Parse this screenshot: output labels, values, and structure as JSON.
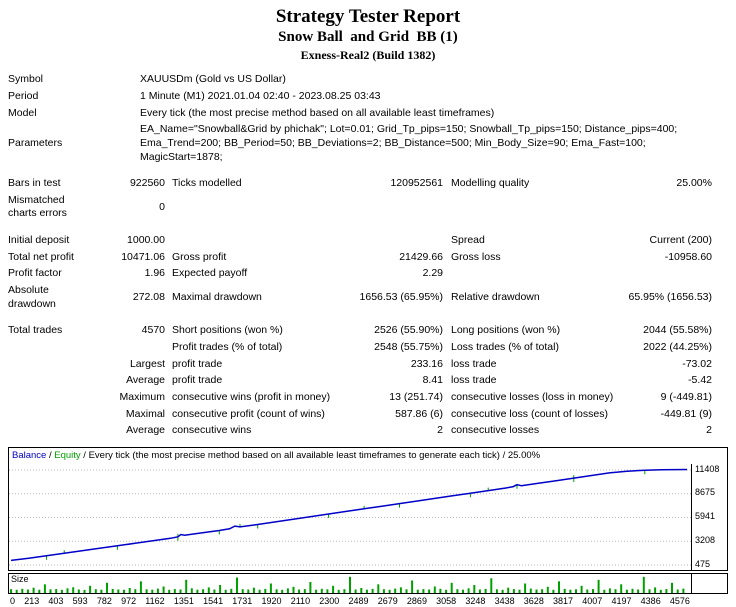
{
  "report": {
    "title": "Strategy Tester Report",
    "subtitle": "Snow Ball  and Grid  BB (1)",
    "server": "Exness-Real2 (Build 1382)"
  },
  "settings": {
    "rows": [
      {
        "label": "Symbol",
        "value": "XAUUSDm (Gold vs US Dollar)"
      },
      {
        "label": "Period",
        "value": "1 Minute (M1) 2021.01.04 02:40 - 2023.08.25 03:43"
      },
      {
        "label": "Model",
        "value": "Every tick (the most precise method based on all available least timeframes)"
      },
      {
        "label": "Parameters",
        "value": "EA_Name=\"Snowball&Grid by phichak\"; Lot=0.01; Grid_Tp_pips=150; Snowball_Tp_pips=150; Distance_pips=400; Ema_Trend=200; BB_Period=50; BB_Deviations=2; BB_Distance=500; Min_Body_Size=90; Ema_Fast=100; MagicStart=1878;"
      }
    ]
  },
  "stats": {
    "rows": [
      {
        "c1": "Bars in test",
        "c2": "922560",
        "c3": "Ticks modelled",
        "c4": "120952561",
        "c5": "Modelling quality",
        "c6": "25.00%"
      },
      {
        "c1": "Mismatched charts errors",
        "c2": "0",
        "c3": "",
        "c4": "",
        "c5": "",
        "c6": ""
      },
      {
        "c1": "Initial deposit",
        "c2": "1000.00",
        "c3": "",
        "c4": "",
        "c5": "Spread",
        "c6": "Current (200)"
      },
      {
        "c1": "Total net profit",
        "c2": "10471.06",
        "c3": "Gross profit",
        "c4": "21429.66",
        "c5": "Gross loss",
        "c6": "-10958.60"
      },
      {
        "c1": "Profit factor",
        "c2": "1.96",
        "c3": "Expected payoff",
        "c4": "2.29",
        "c5": "",
        "c6": ""
      },
      {
        "c1": "Absolute drawdown",
        "c2": "272.08",
        "c3": "Maximal drawdown",
        "c4": "1656.53 (65.95%)",
        "c5": "Relative drawdown",
        "c6": "65.95% (1656.53)"
      },
      {
        "c1": "Total trades",
        "c2": "4570",
        "c3": "Short positions (won %)",
        "c4": "2526 (55.90%)",
        "c5": "Long positions (won %)",
        "c6": "2044 (55.58%)"
      },
      {
        "c1": "",
        "c2": "",
        "c3": "Profit trades (% of total)",
        "c4": "2548 (55.75%)",
        "c5": "Loss trades (% of total)",
        "c6": "2022 (44.25%)"
      },
      {
        "c1": "",
        "c2": "Largest",
        "c3": "profit trade",
        "c4": "233.16",
        "c5": "loss trade",
        "c6": "-73.02"
      },
      {
        "c1": "",
        "c2": "Average",
        "c3": "profit trade",
        "c4": "8.41",
        "c5": "loss trade",
        "c6": "-5.42"
      },
      {
        "c1": "",
        "c2": "Maximum",
        "c3": "consecutive wins (profit in money)",
        "c4": "13 (251.74)",
        "c5": "consecutive losses (loss in money)",
        "c6": "9 (-449.81)"
      },
      {
        "c1": "",
        "c2": "Maximal",
        "c3": "consecutive profit (count of wins)",
        "c4": "587.86 (6)",
        "c5": "consecutive loss (count of losses)",
        "c6": "-449.81 (9)"
      },
      {
        "c1": "",
        "c2": "Average",
        "c3": "consecutive wins",
        "c4": "2",
        "c5": "consecutive losses",
        "c6": "2"
      }
    ]
  },
  "chart_data": {
    "type": "line",
    "title": "Balance / Equity curve",
    "legend_balance": "Balance",
    "legend_equity": "Equity",
    "separator": " / ",
    "caption_model": "Every tick (the most precise method based on all available least timeframes to generate each tick)",
    "caption_quality": "25.00%",
    "balance_color": "#0000c8",
    "equity_color": "#00a000",
    "size_bar_color": "#00a000",
    "grid": "horizontal-dotted",
    "legend_position": "top-left",
    "x_range": [
      0,
      4576
    ],
    "y_range": [
      475,
      11408
    ],
    "y_ticks": [
      475,
      3208,
      5941,
      8675,
      11408
    ],
    "x_ticks": [
      0,
      213,
      403,
      593,
      782,
      972,
      1162,
      1351,
      1541,
      1731,
      1920,
      2110,
      2300,
      2489,
      2679,
      2869,
      3058,
      3248,
      3438,
      3628,
      3817,
      4007,
      4197,
      4386,
      4576
    ],
    "size_label": "Size",
    "balance_points": [
      [
        0,
        1000
      ],
      [
        120,
        1260
      ],
      [
        240,
        1545
      ],
      [
        360,
        1830
      ],
      [
        480,
        2120
      ],
      [
        600,
        2400
      ],
      [
        720,
        2690
      ],
      [
        840,
        2975
      ],
      [
        960,
        3260
      ],
      [
        1080,
        3545
      ],
      [
        1130,
        3720
      ],
      [
        1150,
        3990
      ],
      [
        1175,
        3900
      ],
      [
        1290,
        4170
      ],
      [
        1410,
        4450
      ],
      [
        1480,
        4640
      ],
      [
        1515,
        4950
      ],
      [
        1550,
        4860
      ],
      [
        1670,
        5140
      ],
      [
        1790,
        5440
      ],
      [
        1910,
        5740
      ],
      [
        2030,
        6040
      ],
      [
        2150,
        6340
      ],
      [
        2270,
        6640
      ],
      [
        2390,
        6940
      ],
      [
        2510,
        7240
      ],
      [
        2630,
        7540
      ],
      [
        2750,
        7840
      ],
      [
        2870,
        8140
      ],
      [
        2990,
        8440
      ],
      [
        3110,
        8740
      ],
      [
        3230,
        9040
      ],
      [
        3350,
        9340
      ],
      [
        3400,
        9500
      ],
      [
        3425,
        9720
      ],
      [
        3455,
        9600
      ],
      [
        3570,
        9880
      ],
      [
        3690,
        10180
      ],
      [
        3810,
        10480
      ],
      [
        3930,
        10780
      ],
      [
        4050,
        11080
      ],
      [
        4170,
        11260
      ],
      [
        4290,
        11390
      ],
      [
        4400,
        11445
      ],
      [
        4576,
        11471
      ]
    ],
    "size_bars": [
      0.12,
      0.08,
      0.15,
      0.1,
      0.22,
      0.09,
      0.45,
      0.11,
      0.13,
      0.08,
      0.18,
      0.25,
      0.1,
      0.07,
      0.35,
      0.12,
      0.09,
      0.55,
      0.14,
      0.1,
      0.08,
      0.2,
      0.12,
      0.65,
      0.11,
      0.09,
      0.16,
      0.3,
      0.08,
      0.13,
      0.1,
      0.75,
      0.18,
      0.09,
      0.12,
      0.24,
      0.1,
      0.4,
      0.08,
      0.15,
      0.9,
      0.12,
      0.1,
      0.22,
      0.09,
      0.14,
      0.5,
      0.11,
      0.08,
      0.17,
      0.28,
      0.1,
      0.13,
      0.6,
      0.09,
      0.15,
      0.11,
      0.35,
      0.08,
      0.12,
      0.95,
      0.1,
      0.2,
      0.09,
      0.14,
      0.45,
      0.12,
      0.08,
      0.16,
      0.25,
      0.11,
      0.7,
      0.09,
      0.13,
      0.1,
      0.3,
      0.15,
      0.08,
      0.55,
      0.12,
      0.09,
      0.18,
      0.4,
      0.1,
      0.14,
      0.85,
      0.11,
      0.08,
      0.22,
      0.13,
      0.09,
      0.5,
      0.16,
      0.1,
      0.12,
      0.28,
      0.08,
      0.65,
      0.14,
      0.09,
      0.11,
      0.35,
      0.1,
      0.13,
      0.75,
      0.08,
      0.17,
      0.12,
      0.45,
      0.09,
      0.15,
      0.1,
      0.95,
      0.11,
      0.24,
      0.08,
      0.13,
      0.55,
      0.1,
      0.16
    ]
  }
}
